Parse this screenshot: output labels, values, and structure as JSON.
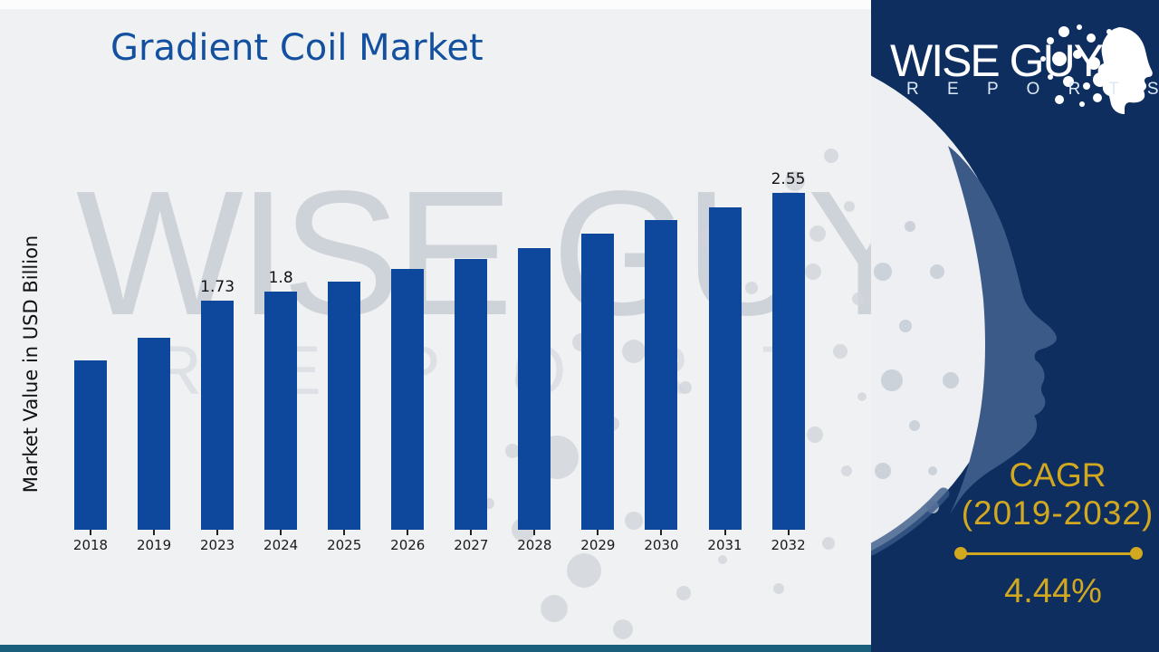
{
  "page": {
    "background": "#f0f1f2"
  },
  "header": {
    "title": "Gradient Coil Market",
    "title_color": "#1350a0"
  },
  "chart_data": {
    "type": "bar",
    "title": "Gradient Coil Market",
    "categories": [
      "2018",
      "2019",
      "2023",
      "2024",
      "2025",
      "2026",
      "2027",
      "2028",
      "2029",
      "2030",
      "2031",
      "2032"
    ],
    "values": [
      1.28,
      1.45,
      1.73,
      1.8,
      1.88,
      1.97,
      2.05,
      2.13,
      2.24,
      2.34,
      2.44,
      2.55
    ],
    "bar_labels": [
      "",
      "",
      "1.73",
      "1.8",
      "",
      "",
      "",
      "",
      "",
      "",
      "",
      "2.55"
    ],
    "xlabel": "",
    "ylabel": "Market Value in USD Billion",
    "ylim": [
      0,
      2.9
    ],
    "bar_color": "#0d489c",
    "grid": false,
    "legend": null
  },
  "watermark": {
    "line1": "WISE GUY",
    "line2": "R E P O R T S"
  },
  "sidebar": {
    "background": "#0d2e5f",
    "logo_line1": "WISE GUY",
    "logo_line2": "R E P O R T S",
    "cagr_title": "CAGR",
    "cagr_range": "(2019-2032)",
    "cagr_value": "4.44%",
    "accent_color": "#d2a820"
  },
  "footer": {
    "strip_color": "#1a607c"
  }
}
